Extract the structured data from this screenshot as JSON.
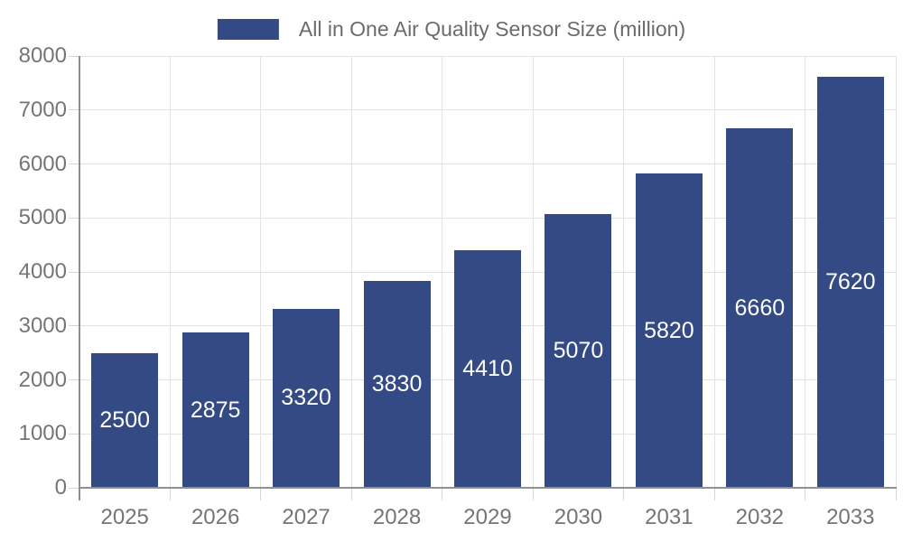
{
  "chart_data": {
    "type": "bar",
    "title": "",
    "legend_label": "All in One Air Quality Sensor Size (million)",
    "legend_position": "top-center",
    "categories": [
      "2025",
      "2026",
      "2027",
      "2028",
      "2029",
      "2030",
      "2031",
      "2032",
      "2033"
    ],
    "series": [
      {
        "name": "All in One Air Quality Sensor Size (million)",
        "values": [
          2500,
          2875,
          3320,
          3830,
          4410,
          5070,
          5820,
          6660,
          7620
        ]
      }
    ],
    "bar_value_labels": [
      "2500",
      "2875",
      "3320",
      "3830",
      "4410",
      "5070",
      "5820",
      "6660",
      "7620"
    ],
    "ylim": [
      0,
      8000
    ],
    "yticks": [
      0,
      1000,
      2000,
      3000,
      4000,
      5000,
      6000,
      7000,
      8000
    ],
    "grid": true,
    "bar_labels_visible": true,
    "colors": {
      "bar": "#344a85",
      "bar_label": "#ffffff",
      "axis_line": "#909090",
      "grid_line": "#e2e2e2",
      "tick_line": "#d6d6d6",
      "axis_text": "#757575",
      "legend_text": "#6b6b6b",
      "background": "#ffffff"
    }
  }
}
